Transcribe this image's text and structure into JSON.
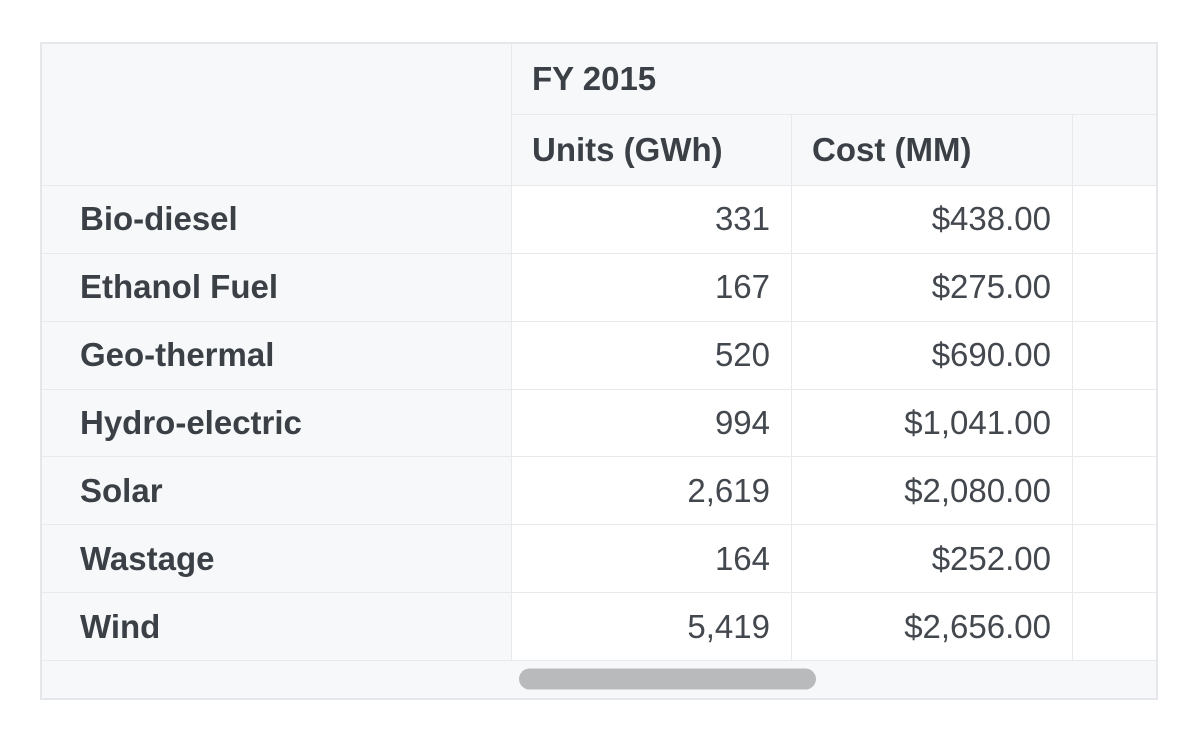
{
  "table": {
    "group_header": {
      "label": "FY 2015"
    },
    "column_headers": [
      {
        "label": "Units (GWh)"
      },
      {
        "label": "Cost (MM)"
      },
      {
        "label": ""
      }
    ],
    "rows": [
      {
        "label": "Bio-diesel",
        "units": "331",
        "cost": "$438.00"
      },
      {
        "label": "Ethanol Fuel",
        "units": "167",
        "cost": "$275.00"
      },
      {
        "label": "Geo-thermal",
        "units": "520",
        "cost": "$690.00"
      },
      {
        "label": "Hydro-electric",
        "units": "994",
        "cost": "$1,041.00"
      },
      {
        "label": "Solar",
        "units": "2,619",
        "cost": "$2,080.00"
      },
      {
        "label": "Wastage",
        "units": "164",
        "cost": "$252.00"
      },
      {
        "label": "Wind",
        "units": "5,419",
        "cost": "$2,656.00"
      }
    ],
    "scrollbar": {
      "orientation": "horizontal"
    },
    "colors": {
      "header_bg": "#f7f8f9",
      "cell_bg": "#ffffff",
      "border": "#e8e9ec",
      "outer_border": "#e5e7ea",
      "text_strong": "#3a4046",
      "text_number": "#43484e",
      "scrollbar_thumb": "#b9babc",
      "scrollbar_track": "#f7f8f9"
    }
  }
}
